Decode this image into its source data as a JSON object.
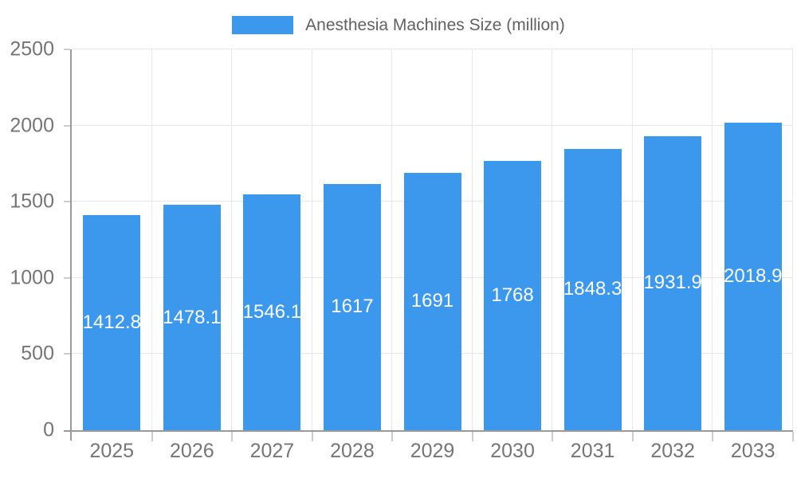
{
  "legend": {
    "label": "Anesthesia Machines Size (million)",
    "swatch_color": "#3B98EC"
  },
  "chart_data": {
    "type": "bar",
    "title": "",
    "xlabel": "",
    "ylabel": "",
    "categories": [
      "2025",
      "2026",
      "2027",
      "2028",
      "2029",
      "2030",
      "2031",
      "2032",
      "2033"
    ],
    "series": [
      {
        "name": "Anesthesia Machines Size (million)",
        "values": [
          1412.8,
          1478.1,
          1546.1,
          1617,
          1691,
          1768,
          1848.3,
          1931.9,
          2018.9
        ],
        "value_labels": [
          "1412.8",
          "1478.1",
          "1546.1",
          "1617",
          "1691",
          "1768",
          "1848.3",
          "1931.9",
          "2018.9"
        ]
      }
    ],
    "legend_entries": [
      "Anesthesia Machines Size (million)"
    ],
    "legend_position": "top",
    "ylim": [
      0,
      2500
    ],
    "y_ticks": [
      0,
      500,
      1000,
      1500,
      2000,
      2500
    ],
    "y_tick_labels": [
      "0",
      "500",
      "1000",
      "1500",
      "2000",
      "2500"
    ],
    "grid": true,
    "value_label_placement": "inside-center",
    "colors": {
      "bar": "#3B98EC",
      "bar_value_label": "#ffffff",
      "axis_line": "#9a9a9a",
      "gridline": "#e6e6e6",
      "tick": "#cccccc",
      "axis_text": "#757575",
      "legend_text": "#616161",
      "background": "#ffffff"
    }
  }
}
